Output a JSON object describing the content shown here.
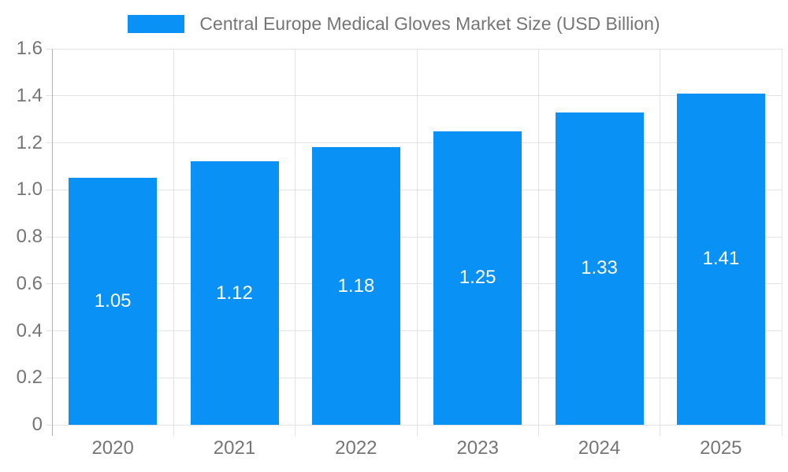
{
  "chart_data": {
    "type": "bar",
    "title": "Central Europe Medical Gloves Market Size (USD Billion)",
    "categories": [
      "2020",
      "2021",
      "2022",
      "2023",
      "2024",
      "2025"
    ],
    "values": [
      1.05,
      1.12,
      1.18,
      1.25,
      1.33,
      1.41
    ],
    "bar_labels": [
      "1.05",
      "1.12",
      "1.18",
      "1.25",
      "1.33",
      "1.41"
    ],
    "xlabel": "",
    "ylabel": "",
    "ylim": [
      0,
      1.6
    ],
    "ytick_interval": 0.2,
    "ytick_labels": [
      "0",
      "0.2",
      "0.4",
      "0.6",
      "0.8",
      "1.0",
      "1.2",
      "1.4",
      "1.6"
    ],
    "grid": true,
    "legend_position": "top",
    "colors": {
      "bar": "#0A91F5",
      "bar_label_text": "#ffffff",
      "axis_text": "#757575",
      "gridline": "#e3e3e3",
      "axis_line": "#b0b0b0",
      "background": "#ffffff"
    }
  }
}
